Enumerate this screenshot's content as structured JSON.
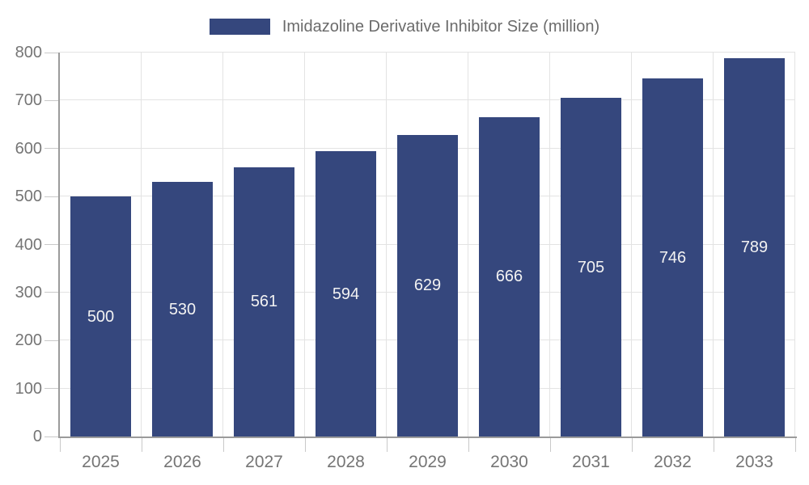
{
  "legend": {
    "label": "Imidazoline Derivative Inhibitor Size (million)"
  },
  "chart_data": {
    "type": "bar",
    "title": "Imidazoline Derivative Inhibitor Size (million)",
    "categories": [
      "2025",
      "2026",
      "2027",
      "2028",
      "2029",
      "2030",
      "2031",
      "2032",
      "2033"
    ],
    "values": [
      500,
      530,
      561,
      594,
      629,
      666,
      705,
      746,
      789
    ],
    "xlabel": "",
    "ylabel": "",
    "ylim": [
      0,
      800
    ],
    "yticks": [
      0,
      100,
      200,
      300,
      400,
      500,
      600,
      700,
      800
    ],
    "grid": true,
    "legend_position": "top-center",
    "bar_labels_visible": true,
    "bar_label_position": "center"
  },
  "colors": {
    "bar": "#35477D",
    "bar_label": "#F2F2F2",
    "axis_line": "#9B9B9B",
    "tick_line": "#C9C9C9",
    "grid_line": "#E3E3E3",
    "tick_label": "#757575",
    "legend_text": "#6B6B6B",
    "background": "#FFFFFF"
  }
}
